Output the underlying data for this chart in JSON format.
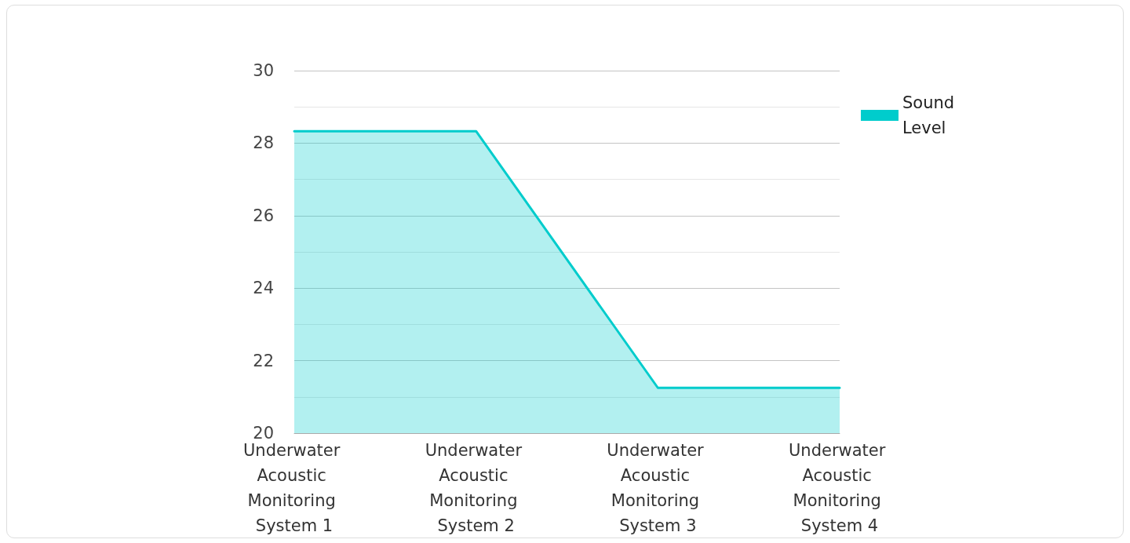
{
  "chart_data": {
    "type": "area",
    "categories": [
      "Underwater Acoustic Monitoring System 1",
      "Underwater Acoustic Monitoring System 2",
      "Underwater Acoustic Monitoring System 3",
      "Underwater Acoustic Monitoring System 4"
    ],
    "series": [
      {
        "name": "Sound Level",
        "color": "#00cccc",
        "values": [
          28.33,
          28.33,
          21.25,
          21.25
        ]
      }
    ],
    "ylim": [
      20,
      30
    ],
    "yticks": [
      20,
      {
        "value": 21,
        "label": null
      },
      22,
      {
        "value": 23,
        "label": null
      },
      24,
      {
        "value": 25,
        "label": null
      },
      26,
      {
        "value": 27,
        "label": null
      },
      28,
      {
        "value": 29,
        "label": null
      },
      30
    ],
    "grid": "y",
    "legend": "top right",
    "marker": "none",
    "line_style": "solid"
  }
}
